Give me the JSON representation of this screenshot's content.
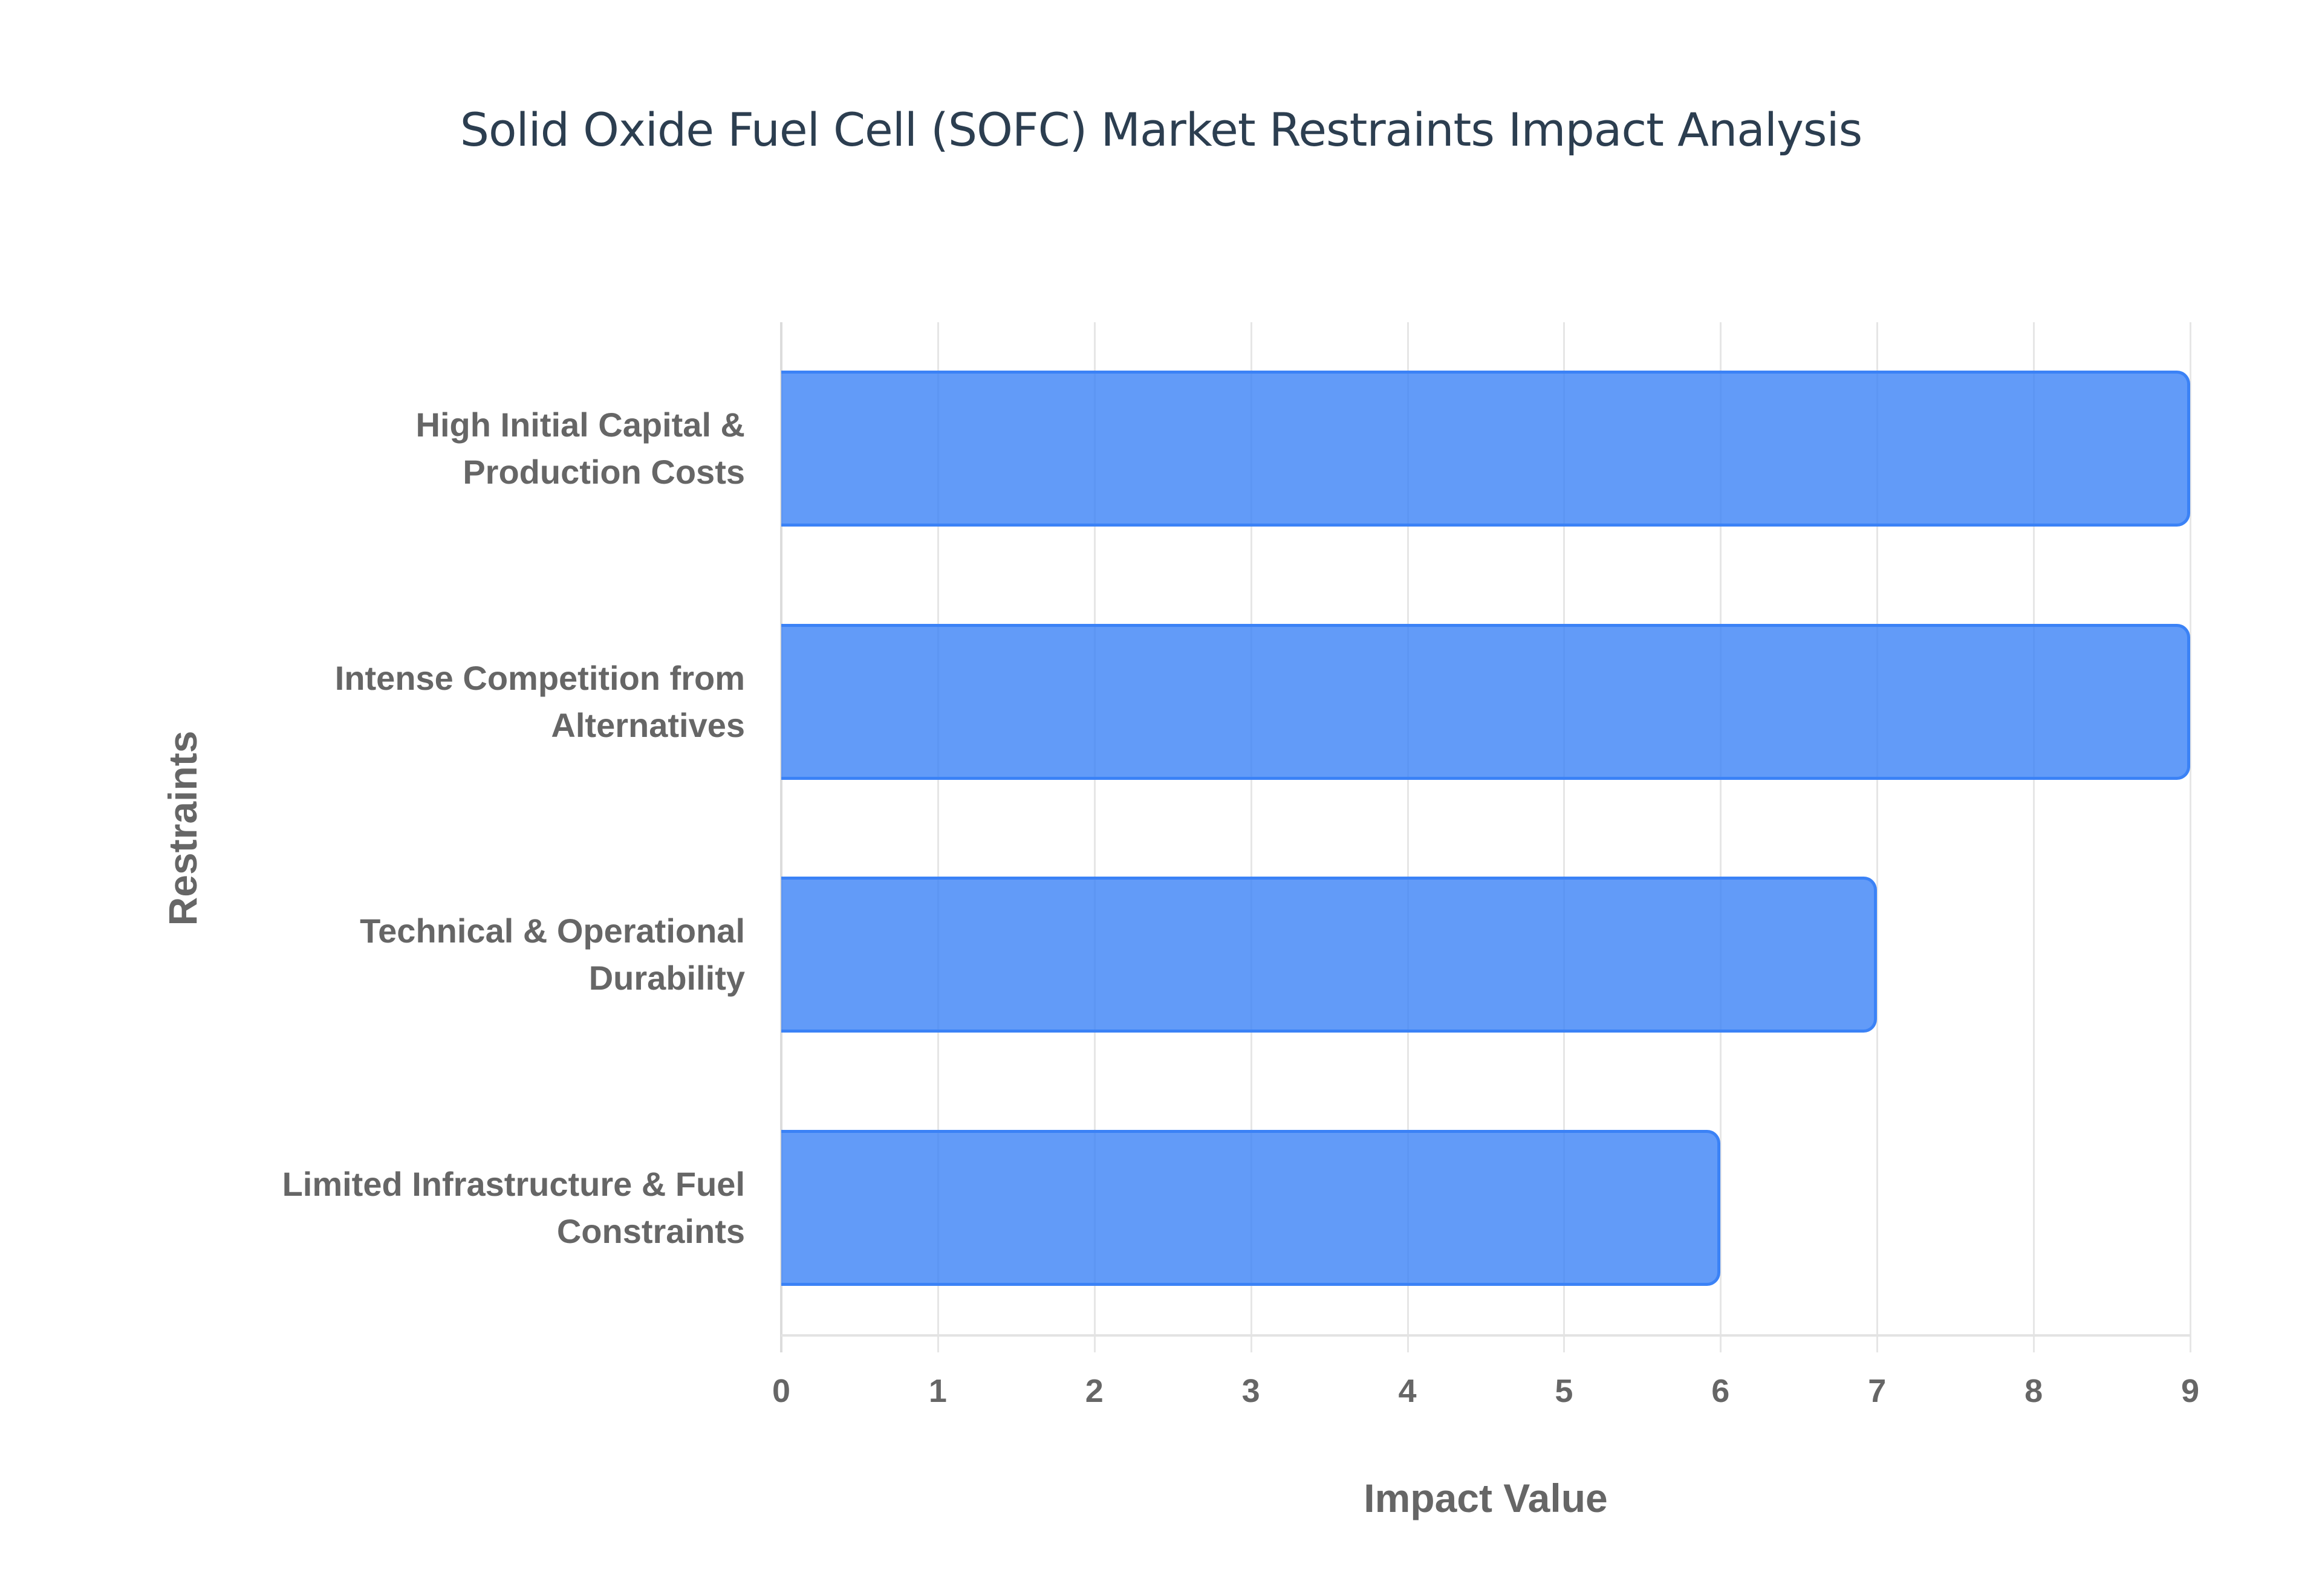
{
  "chart": {
    "title": "Solid Oxide Fuel Cell (SOFC) Market Restraints Impact Analysis",
    "xlabel": "Impact Value",
    "ylabel": "Restraints",
    "x_ticks": [
      "0",
      "1",
      "2",
      "3",
      "4",
      "5",
      "6",
      "7",
      "8",
      "9"
    ],
    "bar_color": "#3b82f6",
    "categories": [
      {
        "line1": "High Initial Capital &",
        "line2": "Production Costs"
      },
      {
        "line1": "Intense Competition from",
        "line2": "Alternatives"
      },
      {
        "line1": "Technical & Operational",
        "line2": "Durability"
      },
      {
        "line1": "Limited Infrastructure & Fuel",
        "line2": "Constraints"
      }
    ]
  },
  "chart_data": {
    "type": "bar",
    "orientation": "horizontal",
    "title": "Solid Oxide Fuel Cell (SOFC) Market Restraints Impact Analysis",
    "xlabel": "Impact Value",
    "ylabel": "Restraints",
    "categories": [
      "High Initial Capital & Production Costs",
      "Intense Competition from Alternatives",
      "Technical & Operational Durability",
      "Limited Infrastructure & Fuel Constraints"
    ],
    "values": [
      9,
      9,
      7,
      6
    ],
    "xlim": [
      0,
      9
    ],
    "x_ticks": [
      0,
      1,
      2,
      3,
      4,
      5,
      6,
      7,
      8,
      9
    ],
    "grid": true,
    "legend": null,
    "bar_color": "#3b82f6"
  }
}
